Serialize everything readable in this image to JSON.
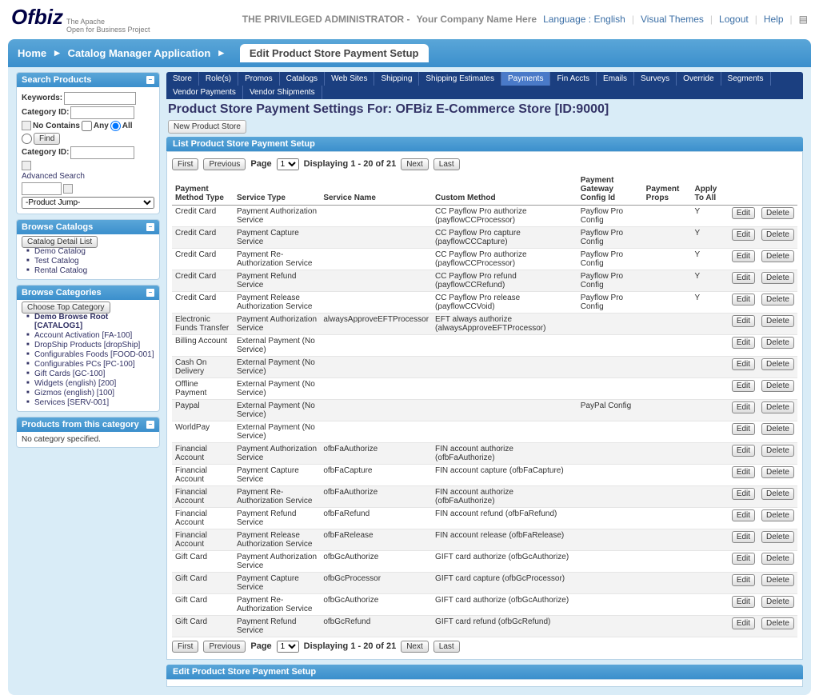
{
  "header": {
    "logo_main": "Ofbiz",
    "logo_sub1": "The Apache",
    "logo_sub2": "Open for Business Project",
    "admin_label": "THE PRIVILEGED ADMINISTRATOR -",
    "company": "Your Company Name Here",
    "lang_label": "Language :",
    "lang": "English",
    "themes": "Visual Themes",
    "logout": "Logout",
    "help": "Help"
  },
  "breadcrumb": {
    "home": "Home",
    "app": "Catalog Manager Application",
    "page": "Edit Product Store Payment Setup"
  },
  "search": {
    "title": "Search Products",
    "keywords": "Keywords:",
    "category": "Category ID:",
    "no_contains": "No Contains",
    "any": "Any",
    "all": "All",
    "find": "Find",
    "category2": "Category ID:",
    "advanced": "Advanced Search",
    "jump_placeholder": "-Product Jump-"
  },
  "browse_catalogs": {
    "title": "Browse Catalogs",
    "detail_btn": "Catalog Detail List",
    "items": [
      "Demo Catalog",
      "Test Catalog",
      "Rental Catalog"
    ]
  },
  "browse_categories": {
    "title": "Browse Categories",
    "top_btn": "Choose Top Category",
    "items": [
      "Demo Browse Root [CATALOG1]",
      "Account Activation [FA-100]",
      "DropShip Products [dropShip]",
      "Configurables Foods [FOOD-001]",
      "Configurables PCs [PC-100]",
      "Gift Cards [GC-100]",
      "Widgets (english) [200]",
      "Gizmos (english) [100]",
      "Services [SERV-001]"
    ]
  },
  "products_cat": {
    "title": "Products from this category",
    "none": "No category specified."
  },
  "tabs": [
    "Store",
    "Role(s)",
    "Promos",
    "Catalogs",
    "Web Sites",
    "Shipping",
    "Shipping Estimates",
    "Payments",
    "Fin Accts",
    "Emails",
    "Surveys",
    "Override",
    "Segments",
    "Vendor Payments",
    "Vendor Shipments"
  ],
  "tab_active": "Payments",
  "page_title": "Product Store Payment Settings For: OFBiz E-Commerce Store [ID:9000]",
  "new_btn": "New Product Store",
  "list_bar": "List Product Store Payment Setup",
  "pager": {
    "first": "First",
    "prev": "Previous",
    "page_label": "Page",
    "page_val": "1",
    "displaying": "Displaying 1 - 20 of 21",
    "next": "Next",
    "last": "Last"
  },
  "cols": [
    "Payment Method Type",
    "Service Type",
    "Service Name",
    "Custom Method",
    "Payment Gateway Config Id",
    "Payment Props",
    "Apply To All"
  ],
  "edit": "Edit",
  "delete": "Delete",
  "rows": [
    {
      "t": "Credit Card",
      "s": "Payment Authorization Service",
      "n": "",
      "c": "CC Payflow Pro authorize (payflowCCProcessor)",
      "g": "Payflow Pro Config",
      "p": "",
      "a": "Y"
    },
    {
      "t": "Credit Card",
      "s": "Payment Capture Service",
      "n": "",
      "c": "CC Payflow Pro capture (payflowCCCapture)",
      "g": "Payflow Pro Config",
      "p": "",
      "a": "Y"
    },
    {
      "t": "Credit Card",
      "s": "Payment Re-Authorization Service",
      "n": "",
      "c": "CC Payflow Pro authorize (payflowCCProcessor)",
      "g": "Payflow Pro Config",
      "p": "",
      "a": "Y"
    },
    {
      "t": "Credit Card",
      "s": "Payment Refund Service",
      "n": "",
      "c": "CC Payflow Pro refund (payflowCCRefund)",
      "g": "Payflow Pro Config",
      "p": "",
      "a": "Y"
    },
    {
      "t": "Credit Card",
      "s": "Payment Release Authorization Service",
      "n": "",
      "c": "CC Payflow Pro release (payflowCCVoid)",
      "g": "Payflow Pro Config",
      "p": "",
      "a": "Y"
    },
    {
      "t": "Electronic Funds Transfer",
      "s": "Payment Authorization Service",
      "n": "alwaysApproveEFTProcessor",
      "c": "EFT always authorize (alwaysApproveEFTProcessor)",
      "g": "",
      "p": "",
      "a": ""
    },
    {
      "t": "Billing Account",
      "s": "External Payment (No Service)",
      "n": "",
      "c": "",
      "g": "",
      "p": "",
      "a": ""
    },
    {
      "t": "Cash On Delivery",
      "s": "External Payment (No Service)",
      "n": "",
      "c": "",
      "g": "",
      "p": "",
      "a": ""
    },
    {
      "t": "Offline Payment",
      "s": "External Payment (No Service)",
      "n": "",
      "c": "",
      "g": "",
      "p": "",
      "a": ""
    },
    {
      "t": "Paypal",
      "s": "External Payment (No Service)",
      "n": "",
      "c": "",
      "g": "PayPal Config",
      "p": "",
      "a": ""
    },
    {
      "t": "WorldPay",
      "s": "External Payment (No Service)",
      "n": "",
      "c": "",
      "g": "",
      "p": "",
      "a": ""
    },
    {
      "t": "Financial Account",
      "s": "Payment Authorization Service",
      "n": "ofbFaAuthorize",
      "c": "FIN account authorize (ofbFaAuthorize)",
      "g": "",
      "p": "",
      "a": ""
    },
    {
      "t": "Financial Account",
      "s": "Payment Capture Service",
      "n": "ofbFaCapture",
      "c": "FIN account capture (ofbFaCapture)",
      "g": "",
      "p": "",
      "a": ""
    },
    {
      "t": "Financial Account",
      "s": "Payment Re-Authorization Service",
      "n": "ofbFaAuthorize",
      "c": "FIN account authorize (ofbFaAuthorize)",
      "g": "",
      "p": "",
      "a": ""
    },
    {
      "t": "Financial Account",
      "s": "Payment Refund Service",
      "n": "ofbFaRefund",
      "c": "FIN account refund (ofbFaRefund)",
      "g": "",
      "p": "",
      "a": ""
    },
    {
      "t": "Financial Account",
      "s": "Payment Release Authorization Service",
      "n": "ofbFaRelease",
      "c": "FIN account release (ofbFaRelease)",
      "g": "",
      "p": "",
      "a": ""
    },
    {
      "t": "Gift Card",
      "s": "Payment Authorization Service",
      "n": "ofbGcAuthorize",
      "c": "GIFT card authorize (ofbGcAuthorize)",
      "g": "",
      "p": "",
      "a": ""
    },
    {
      "t": "Gift Card",
      "s": "Payment Capture Service",
      "n": "ofbGcProcessor",
      "c": "GIFT card capture (ofbGcProcessor)",
      "g": "",
      "p": "",
      "a": ""
    },
    {
      "t": "Gift Card",
      "s": "Payment Re-Authorization Service",
      "n": "ofbGcAuthorize",
      "c": "GIFT card authorize (ofbGcAuthorize)",
      "g": "",
      "p": "",
      "a": ""
    },
    {
      "t": "Gift Card",
      "s": "Payment Refund Service",
      "n": "ofbGcRefund",
      "c": "GIFT card refund (ofbGcRefund)",
      "g": "",
      "p": "",
      "a": ""
    }
  ],
  "edit_bar": "Edit Product Store Payment Setup"
}
